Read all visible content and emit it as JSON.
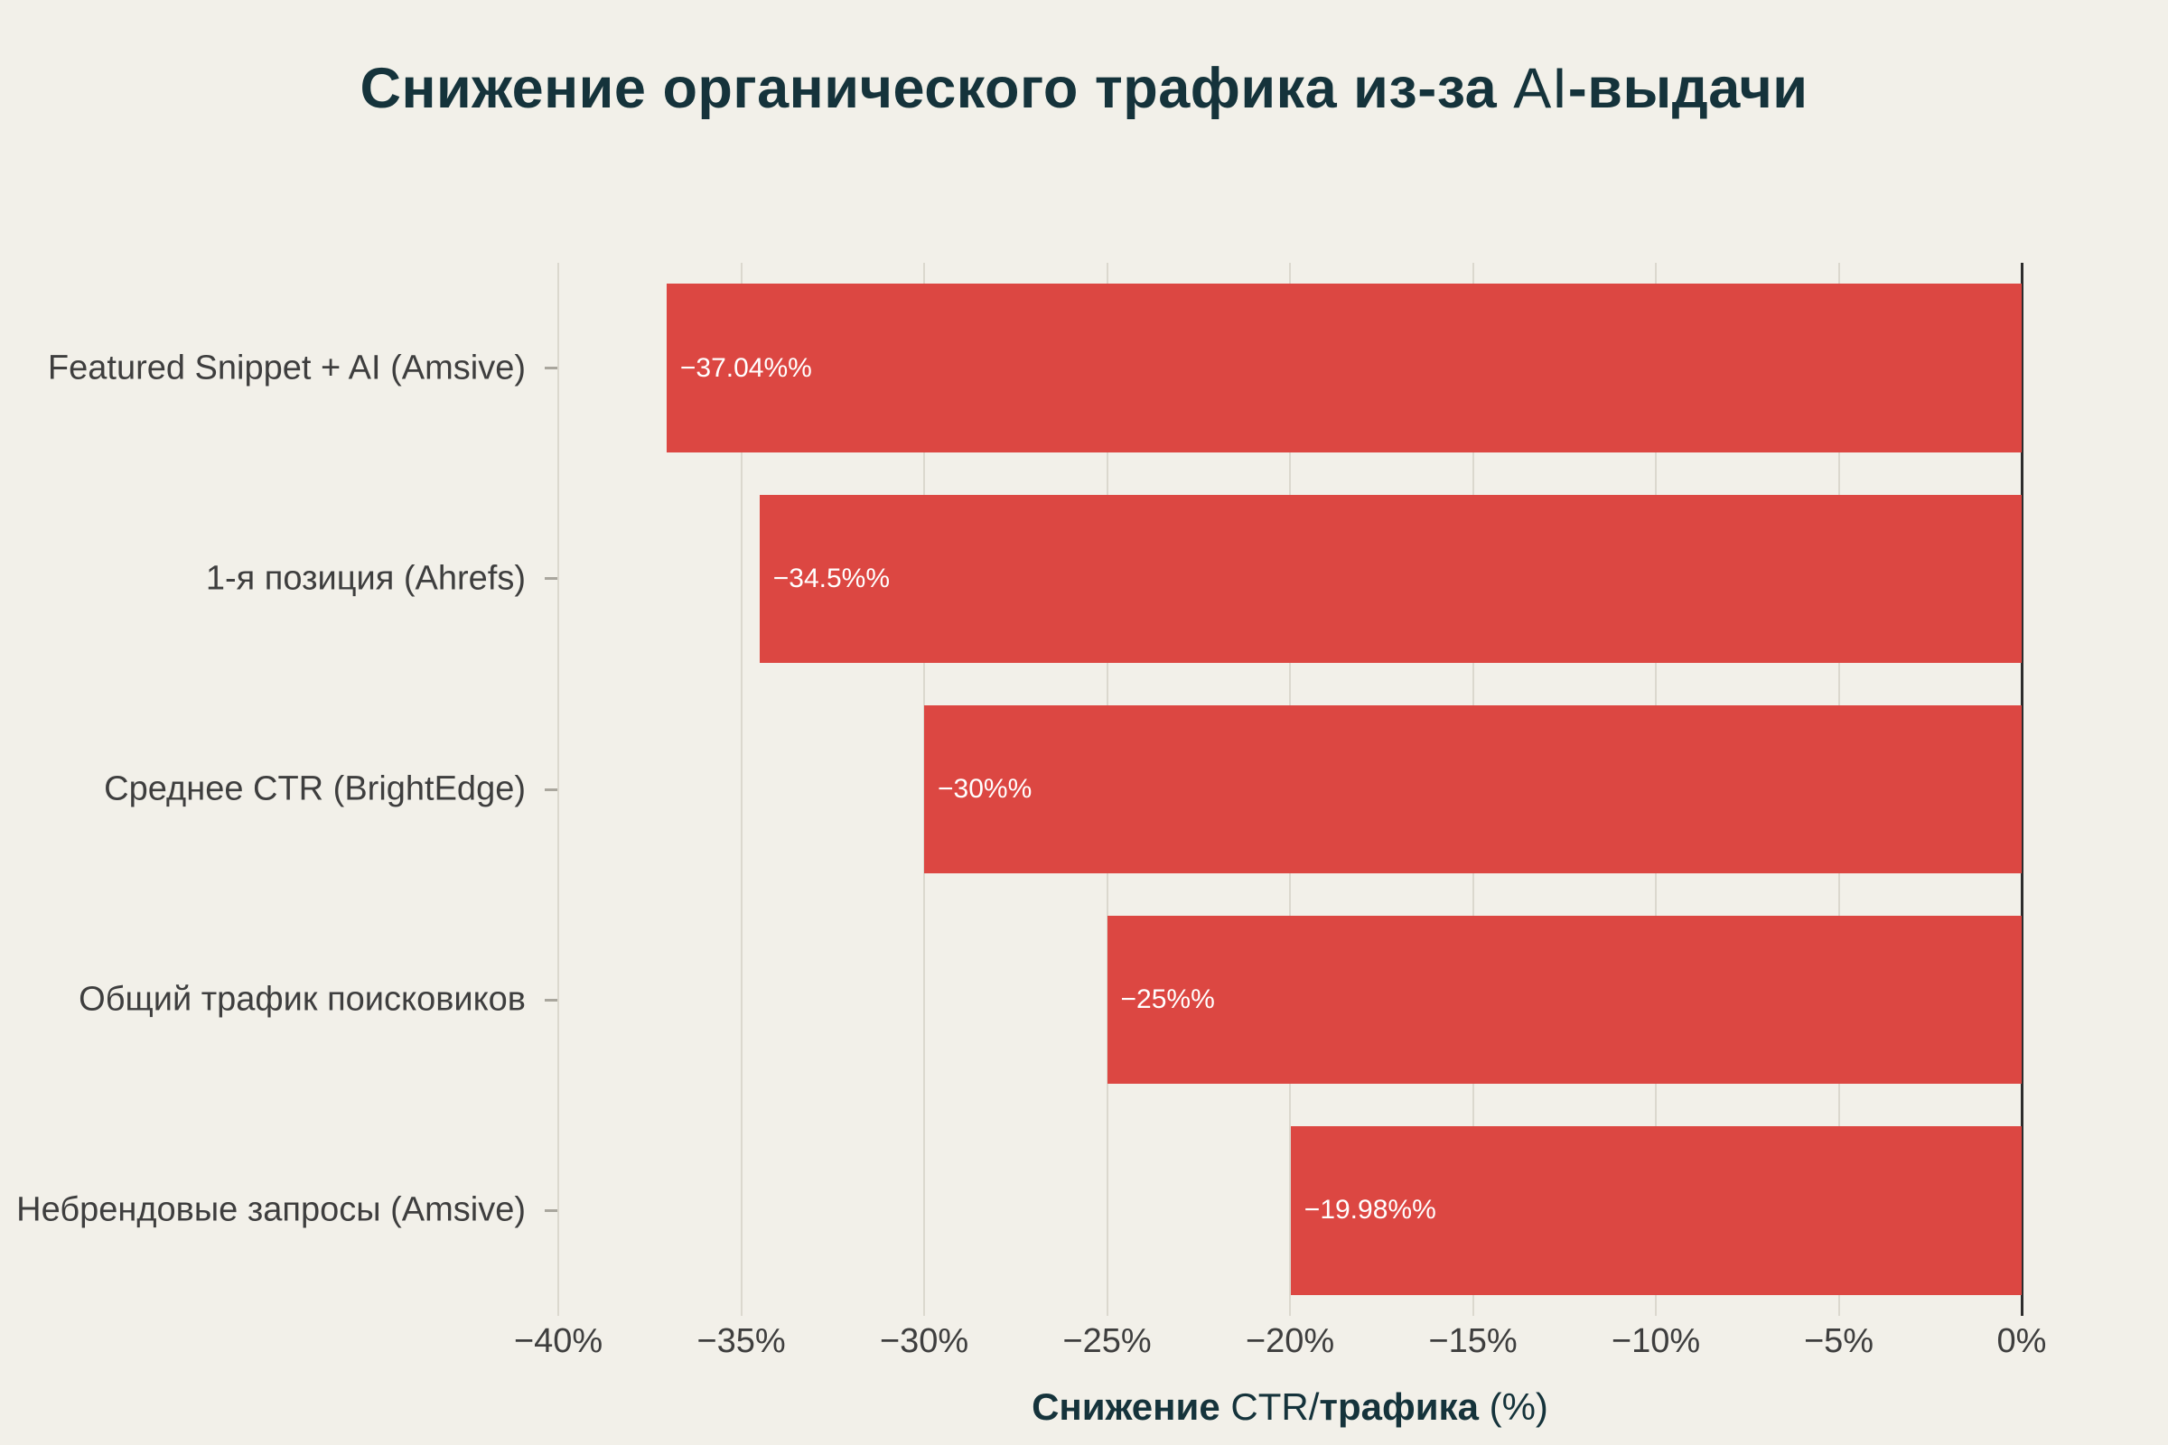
{
  "title": {
    "full": "Снижение органического трафика из-за AI-выдачи",
    "parts": [
      {
        "text": "Снижение органического трафика из-за ",
        "bold": true
      },
      {
        "text": "AI",
        "bold": false
      },
      {
        "text": "-выдачи",
        "bold": true
      }
    ]
  },
  "colors": {
    "background": "#f2f0e9",
    "bar": "#dc4742",
    "title": "#15333b",
    "axis_text": "#3e3e3e",
    "bar_label": "#ffffff",
    "gridline": "#dbd8ce",
    "zero_line": "#2d2d2d",
    "tick_mark": "#a9a69d"
  },
  "chart_data": {
    "type": "bar",
    "orientation": "horizontal",
    "title": "Снижение органического трафика из-за AI-выдачи",
    "categories": [
      "Featured Snippet + AI (Amsive)",
      "1-я позиция (Ahrefs)",
      "Среднее CTR (BrightEdge)",
      "Общий трафик поисковиков",
      "Небрендовые запросы (Amsive)"
    ],
    "values": [
      -37.04,
      -34.5,
      -30,
      -25,
      -19.98
    ],
    "bar_labels": [
      "−37.04%%",
      "−34.5%%",
      "−30%%",
      "−25%%",
      "−19.98%%"
    ],
    "bar_color": "#dc4742",
    "xlim": [
      -40,
      0
    ],
    "x_ticks": [
      -40,
      -35,
      -30,
      -25,
      -20,
      -15,
      -10,
      -5,
      0
    ],
    "x_tick_labels": [
      "−40%",
      "−35%",
      "−30%",
      "−25%",
      "−20%",
      "−15%",
      "−10%",
      "−5%",
      "0%"
    ],
    "xlabel": "Снижение CTR/трафика (%)",
    "xlabel_parts": [
      {
        "text": "Снижение ",
        "bold": true
      },
      {
        "text": "CTR/",
        "bold": false
      },
      {
        "text": "трафика",
        "bold": true
      },
      {
        "text": " (%)",
        "bold": false
      }
    ],
    "ylabel": "",
    "grid": true,
    "legend": false
  }
}
